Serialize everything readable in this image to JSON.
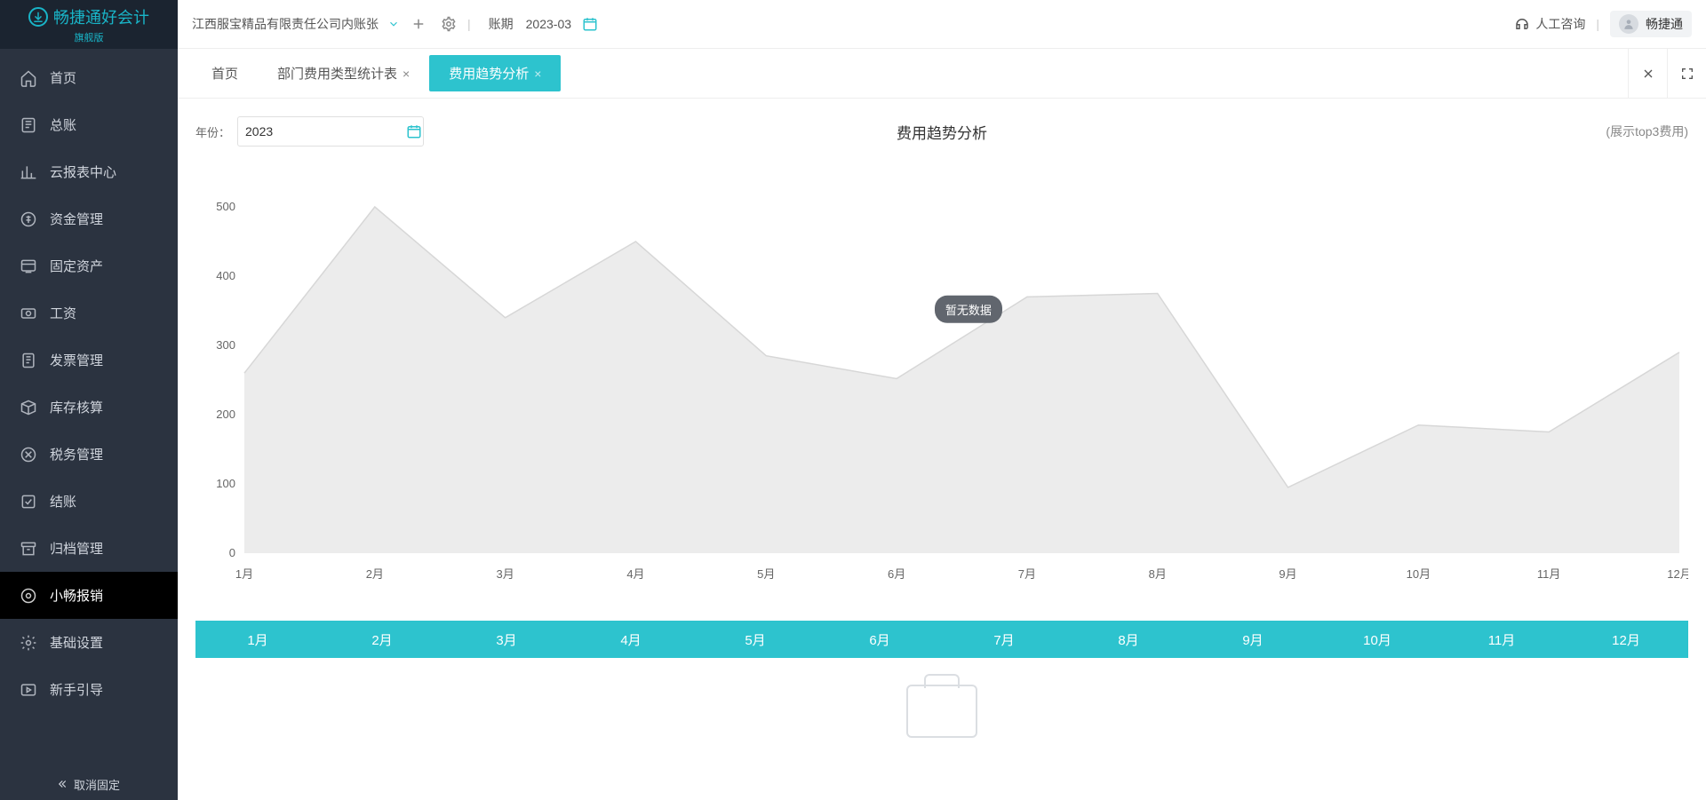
{
  "brand": {
    "name": "畅捷通好会计",
    "edition": "旗舰版"
  },
  "topbar": {
    "company": "江西服宝精品有限责任公司内账张",
    "period_label": "账期",
    "period_value": "2023-03",
    "consult": "人工咨询",
    "username": "畅捷通"
  },
  "sidebar": {
    "items": [
      {
        "icon": "home",
        "label": "首页"
      },
      {
        "icon": "ledger",
        "label": "总账"
      },
      {
        "icon": "report",
        "label": "云报表中心"
      },
      {
        "icon": "fund",
        "label": "资金管理"
      },
      {
        "icon": "asset",
        "label": "固定资产"
      },
      {
        "icon": "salary",
        "label": "工资"
      },
      {
        "icon": "invoice",
        "label": "发票管理"
      },
      {
        "icon": "stock",
        "label": "库存核算"
      },
      {
        "icon": "tax",
        "label": "税务管理"
      },
      {
        "icon": "close",
        "label": "结账"
      },
      {
        "icon": "archive",
        "label": "归档管理"
      },
      {
        "icon": "reimburse",
        "label": "小畅报销",
        "active": true
      },
      {
        "icon": "settings",
        "label": "基础设置"
      },
      {
        "icon": "guide",
        "label": "新手引导"
      }
    ],
    "footer": "取消固定"
  },
  "tabs": [
    {
      "label": "首页",
      "closable": false
    },
    {
      "label": "部门费用类型统计表",
      "closable": true
    },
    {
      "label": "费用趋势分析",
      "closable": true,
      "active": true
    }
  ],
  "filter": {
    "year_label": "年份：",
    "year_value": "2023",
    "chart_title": "费用趋势分析",
    "top3_note": "(展示top3费用)"
  },
  "chart": {
    "type": "area",
    "x_labels": [
      "1月",
      "2月",
      "3月",
      "4月",
      "5月",
      "6月",
      "7月",
      "8月",
      "9月",
      "10月",
      "11月",
      "12月"
    ],
    "y_ticks": [
      0,
      100,
      200,
      300,
      400,
      500
    ],
    "ylim": [
      0,
      500
    ],
    "values": [
      260,
      500,
      340,
      450,
      285,
      252,
      370,
      375,
      95,
      185,
      175,
      290
    ],
    "tooltip_text": "暂无数据",
    "tooltip_near_index": 5,
    "line_color": "#ececec",
    "fill_color": "#ececec",
    "axis_text_color": "#666666",
    "background_color": "#ffffff",
    "axis_fontsize": 13
  },
  "month_strip": {
    "background": "#2dc3ce",
    "text_color": "#ffffff",
    "labels": [
      "1月",
      "2月",
      "3月",
      "4月",
      "5月",
      "6月",
      "7月",
      "8月",
      "9月",
      "10月",
      "11月",
      "12月"
    ]
  }
}
